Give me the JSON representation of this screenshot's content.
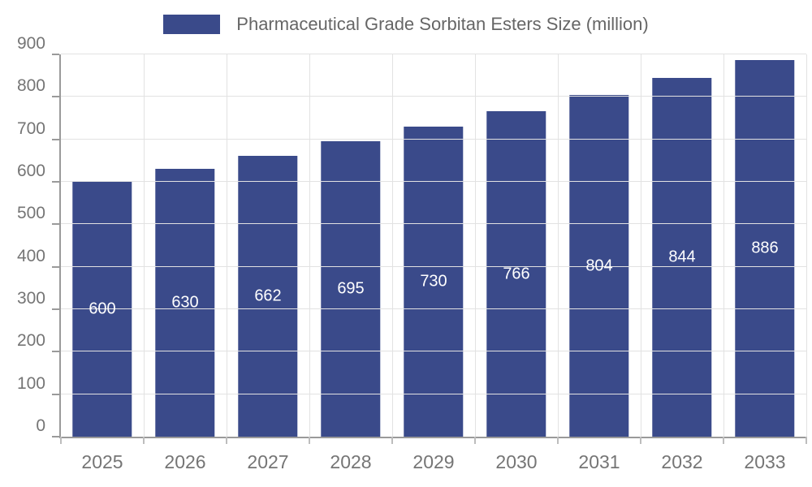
{
  "chart_data": {
    "type": "bar",
    "title": "Pharmaceutical Grade Sorbitan Esters Size (million)",
    "categories": [
      "2025",
      "2026",
      "2027",
      "2028",
      "2029",
      "2030",
      "2031",
      "2032",
      "2033"
    ],
    "values": [
      600,
      630,
      662,
      695,
      730,
      766,
      804,
      844,
      886
    ],
    "xlabel": "",
    "ylabel": "",
    "ylim": [
      0,
      900
    ],
    "ytick_step": 100,
    "ytick_labels": [
      "0",
      "100",
      "200",
      "300",
      "400",
      "500",
      "600",
      "700",
      "800",
      "900"
    ],
    "grid": true,
    "legend_position": "top-center",
    "value_labels_position": "inside-center",
    "colors": {
      "bar": "#3a4a8a",
      "value_label": "#ffffff",
      "axis": "#9a9a9a",
      "grid": "#e2e2e2",
      "tick_label": "#757575",
      "legend_text": "#666666",
      "background": "#ffffff"
    }
  }
}
